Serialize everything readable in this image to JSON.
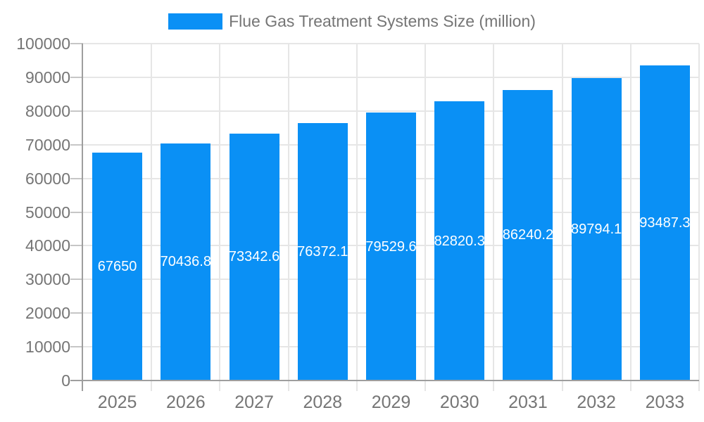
{
  "legend": {
    "label": "Flue Gas Treatment Systems Size (million)"
  },
  "chart_data": {
    "type": "bar",
    "title": "Flue Gas Treatment Systems Size (million)",
    "categories": [
      "2025",
      "2026",
      "2027",
      "2028",
      "2029",
      "2030",
      "2031",
      "2032",
      "2033"
    ],
    "values": [
      67650,
      70436.8,
      73342.6,
      76372.1,
      79529.6,
      82820.3,
      86240.2,
      89794.1,
      93487.3
    ],
    "bar_labels": [
      "67650",
      "70436.8",
      "73342.6",
      "76372.1",
      "79529.6",
      "82820.3",
      "86240.2",
      "89794.1",
      "93487.3"
    ],
    "xlabel": "",
    "ylabel": "",
    "ylim": [
      0,
      100000
    ],
    "y_ticks": [
      0,
      10000,
      20000,
      30000,
      40000,
      50000,
      60000,
      70000,
      80000,
      90000,
      100000
    ],
    "y_tick_labels": [
      "0",
      "10000",
      "20000",
      "30000",
      "40000",
      "50000",
      "60000",
      "70000",
      "80000",
      "90000",
      "100000"
    ],
    "grid": true,
    "legend_position": "top",
    "colors": {
      "bar": "#0a90f5",
      "bar_label": "#ffffff",
      "grid": "#e6e6e6",
      "axis": "#9e9e9e",
      "tick": "#c6c6c6",
      "text": "#757575"
    }
  }
}
